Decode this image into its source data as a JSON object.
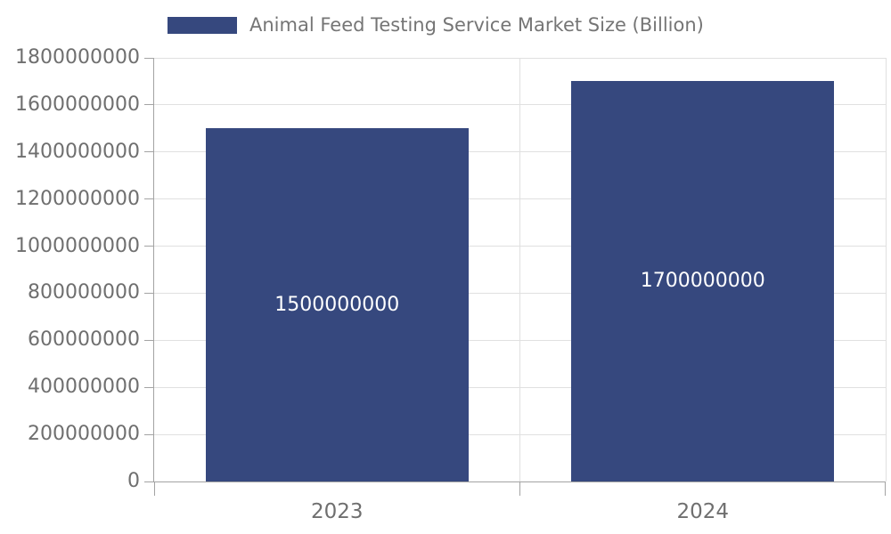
{
  "legend": {
    "label": "Animal Feed Testing Service Market Size (Billion)",
    "swatch_color": "#36487E"
  },
  "chart_data": {
    "type": "bar",
    "title": "Animal Feed Testing Service Market Size (Billion)",
    "categories": [
      "2023",
      "2024"
    ],
    "series": [
      {
        "name": "Animal Feed Testing Service Market Size (Billion)",
        "values": [
          1500000000,
          1700000000
        ]
      }
    ],
    "values": [
      1500000000,
      1700000000
    ],
    "bar_labels": [
      "1500000000",
      "1700000000"
    ],
    "xlabel": "",
    "ylabel": "",
    "ylim": [
      0,
      1800000000
    ],
    "ytick_step": 200000000,
    "ytick_labels": [
      "0",
      "200000000",
      "400000000",
      "600000000",
      "800000000",
      "1000000000",
      "1200000000",
      "1400000000",
      "1600000000",
      "1800000000"
    ],
    "grid": true,
    "legend_position": "top",
    "colors": {
      "bar": "#36487E",
      "bar_label": "#ffffff",
      "axis_label": "#6f6f6f",
      "legend_text": "#757575",
      "grid_line": "#e0e0e0",
      "axis_line": "#a3a3a3"
    }
  }
}
